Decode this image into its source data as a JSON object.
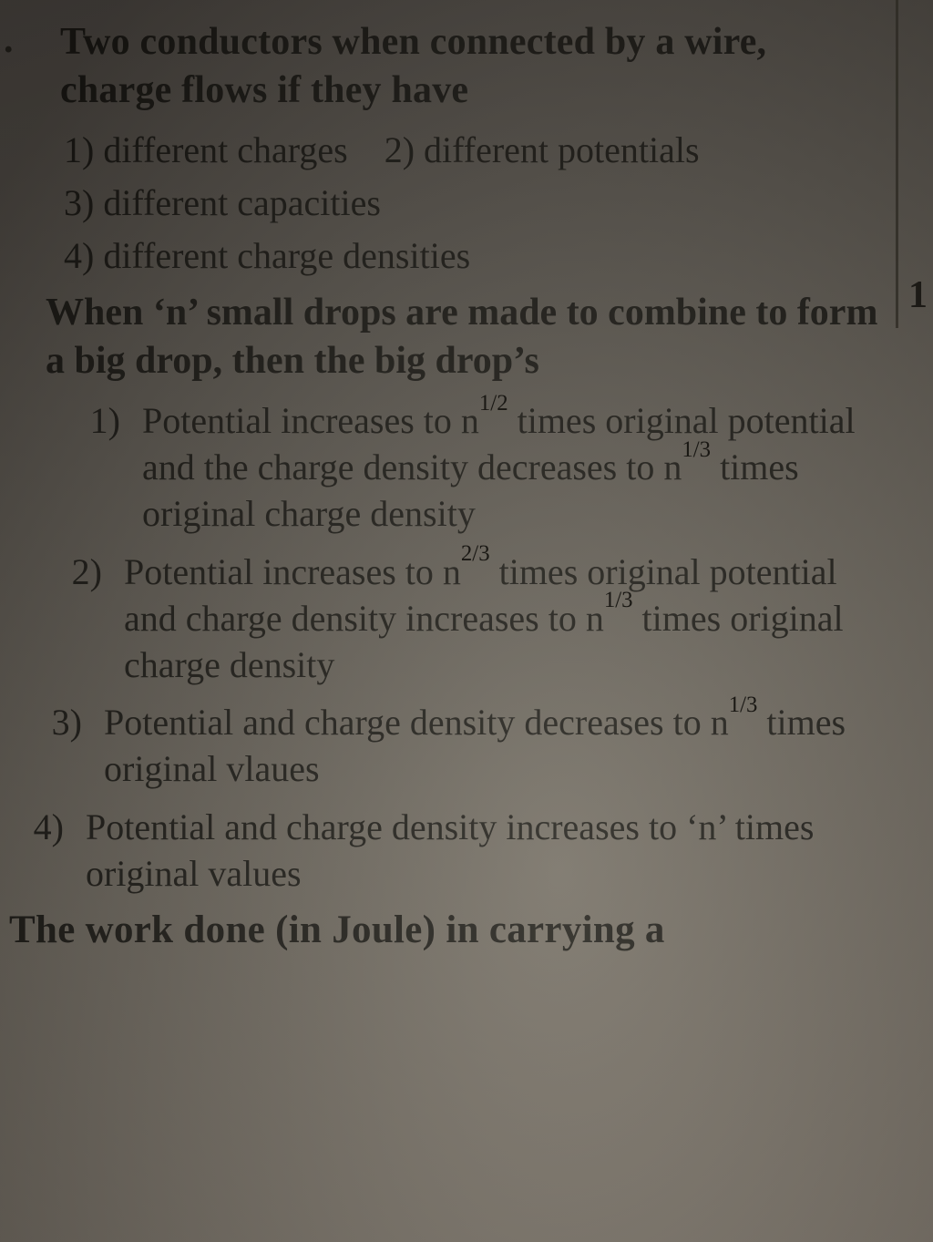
{
  "colors": {
    "text": "#1a1814",
    "bg_gradient_from": "#4a4540",
    "bg_gradient_to": "#7a7268",
    "rule": "#2a2620"
  },
  "typography": {
    "family": "Georgia, 'Times New Roman', serif",
    "stem_size_pt": 32,
    "option_size_pt": 30,
    "stem_weight": "bold",
    "option_weight": "normal"
  },
  "margin_mark": "1",
  "leading_period": ".",
  "q1": {
    "stem": "Two conductors when connected by a wire, charge flows if they have",
    "options": {
      "o1": "1) different charges",
      "o2": "2) different potentials",
      "o3": "3) different capacities",
      "o4": "4) different charge densities"
    }
  },
  "q2": {
    "stem": "When ‘n’ small drops are made to combine to form a big drop, then the big drop’s",
    "options": {
      "n1": "1)",
      "n2": "2)",
      "n3": "3)",
      "n4": "4)",
      "b1a": "Potential increases to n",
      "b1a_sup": "1/2",
      "b1b": " times original potential and the charge density decreases to ",
      "b1c": "n",
      "b1c_sup": "1/3",
      "b1d": " times original charge density",
      "b2a": "Potential increases to n",
      "b2a_sup": "2/3",
      "b2b": " times original potential and charge density increases to n",
      "b2b_sup": "1/3",
      "b2c": " times original charge density",
      "b3a": "Potential and charge density decreases to n",
      "b3a_sup": "1/3",
      "b3b": " times original vlaues",
      "b4": "Potential and charge density increases to ‘n’ times original values"
    }
  },
  "footer": "The work done (in Joule) in carrying a"
}
